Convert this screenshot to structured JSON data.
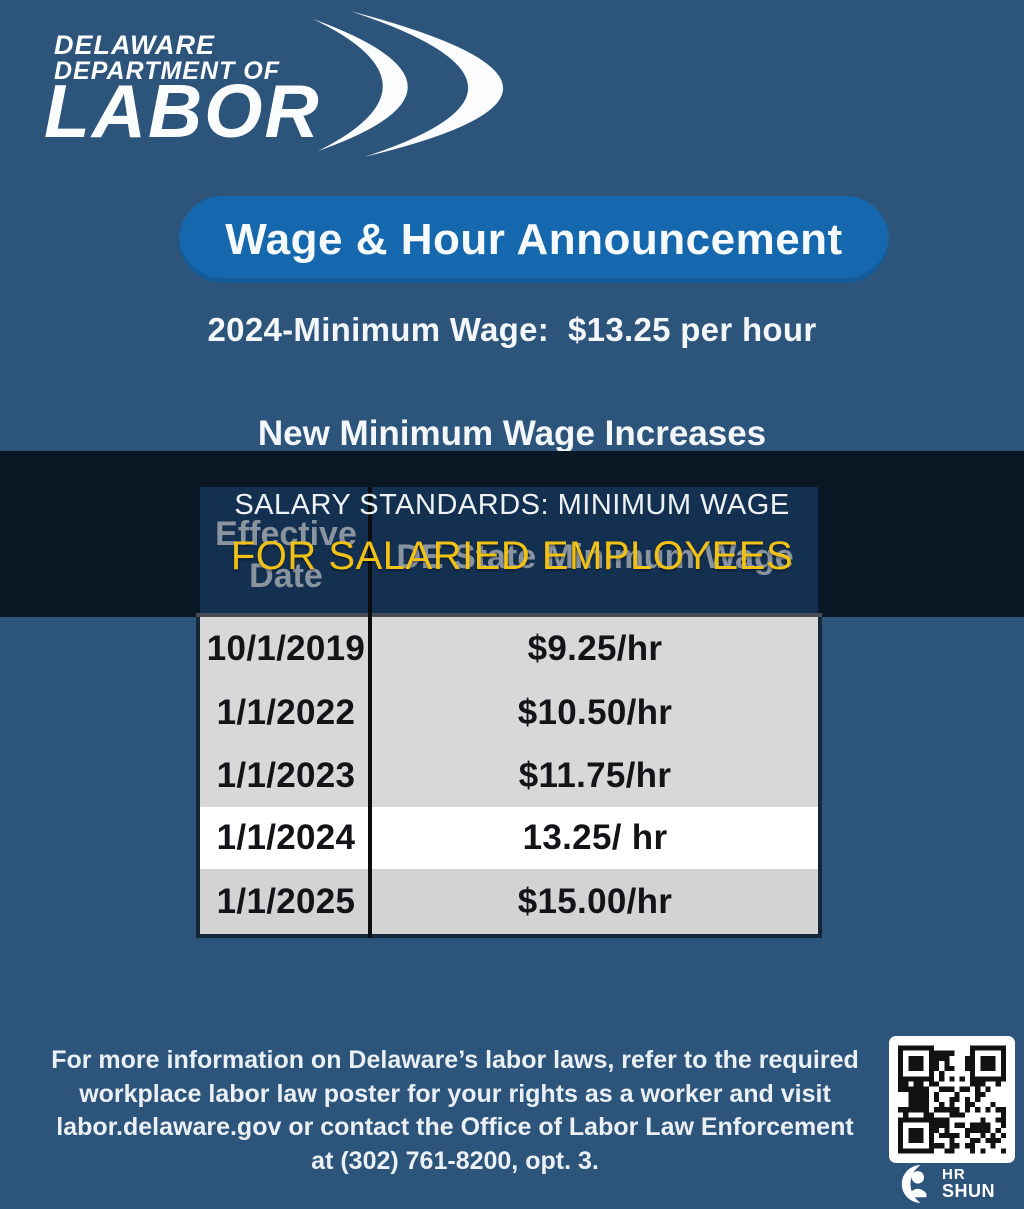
{
  "colors": {
    "background": "#2d547b",
    "banner_blue": "#1568ae",
    "overlay_band": "#0a1725",
    "header_navy": "#143050",
    "accent_yellow": "#f2c115",
    "row_gray": "#d8d8d8",
    "highlight_row_white": "#ffffff",
    "row_text_black": "#121418"
  },
  "logo": {
    "line1": "DELAWARE",
    "line2": "DEPARTMENT OF",
    "line3": "LABOR"
  },
  "header": {
    "banner": "Wage & Hour Announcement",
    "subtitle": "2024-Minimum Wage:  $13.25 per hour",
    "section_title": "New Minimum Wage Increases"
  },
  "overlay": {
    "line1": "SALARY STANDARDS: MINIMUM WAGE",
    "line2": "FOR SALARIED EMPLOYEES"
  },
  "table": {
    "col1_header": "Effective Date",
    "col2_header": "DE State Minimum Wage",
    "rows": [
      {
        "date": "10/1/2019",
        "wage": "$9.25/hr"
      },
      {
        "date": "1/1/2022",
        "wage": "$10.50/hr"
      },
      {
        "date": "1/1/2023",
        "wage": "$11.75/hr"
      },
      {
        "date": "1/1/2024",
        "wage": "13.25/ hr"
      },
      {
        "date": "1/1/2025",
        "wage": "$15.00/hr"
      }
    ],
    "highlighted_row_index": 3
  },
  "footer": {
    "lines": [
      "For more information on Delaware’s labor laws, refer to the required",
      "workplace labor law poster for your rights as a worker and visit",
      "labor.delaware.gov or contact the Office of Labor Law Enforcement",
      "at (302) 761-8200, opt. 3."
    ],
    "brand_top": "HR",
    "brand_bottom": "SHUN"
  }
}
